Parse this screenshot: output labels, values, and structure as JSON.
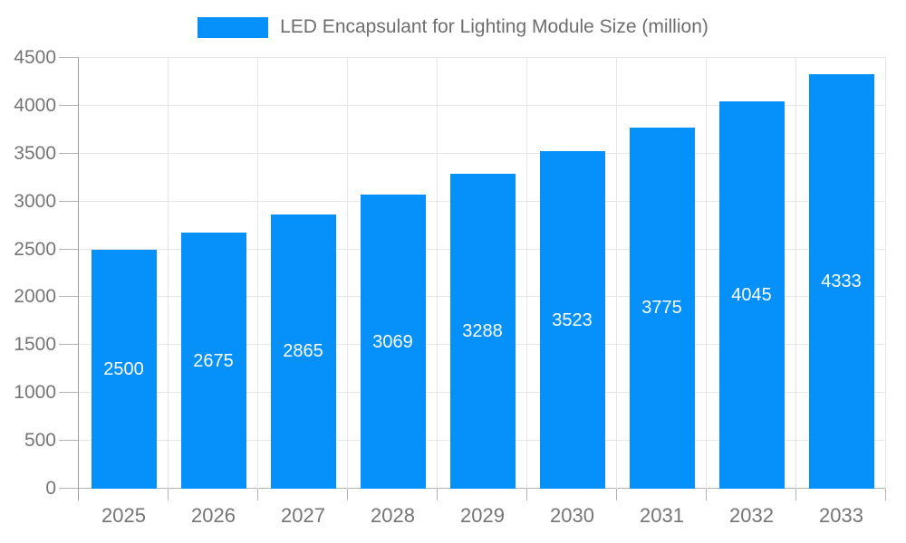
{
  "chart_data": {
    "type": "bar",
    "title": "LED Encapsulant for Lighting Module Size (million)",
    "legend": {
      "label": "LED Encapsulant for Lighting Module Size (million)",
      "position": "top-center"
    },
    "categories": [
      "2025",
      "2026",
      "2027",
      "2028",
      "2029",
      "2030",
      "2031",
      "2032",
      "2033"
    ],
    "values": [
      2500,
      2675,
      2865,
      3069,
      3288,
      3523,
      3775,
      4045,
      4333
    ],
    "value_labels_shown": true,
    "value_label_position": "center-of-bar",
    "xlabel": "",
    "ylabel": "",
    "ylim": [
      0,
      4500
    ],
    "ytick_step": 500,
    "yticks": [
      0,
      500,
      1000,
      1500,
      2000,
      2500,
      3000,
      3500,
      4000,
      4500
    ],
    "grid": true,
    "colors": {
      "bar": "#0590fa",
      "value_label": "#ffffff",
      "axis_text": "#757575",
      "legend_text": "#6e6e6e",
      "gridline": "#e6e6e6",
      "axis_line": "#9e9e9e",
      "zero_line": "#b3b3b3",
      "tick": "#b3b3b3",
      "background": "#ffffff"
    }
  }
}
